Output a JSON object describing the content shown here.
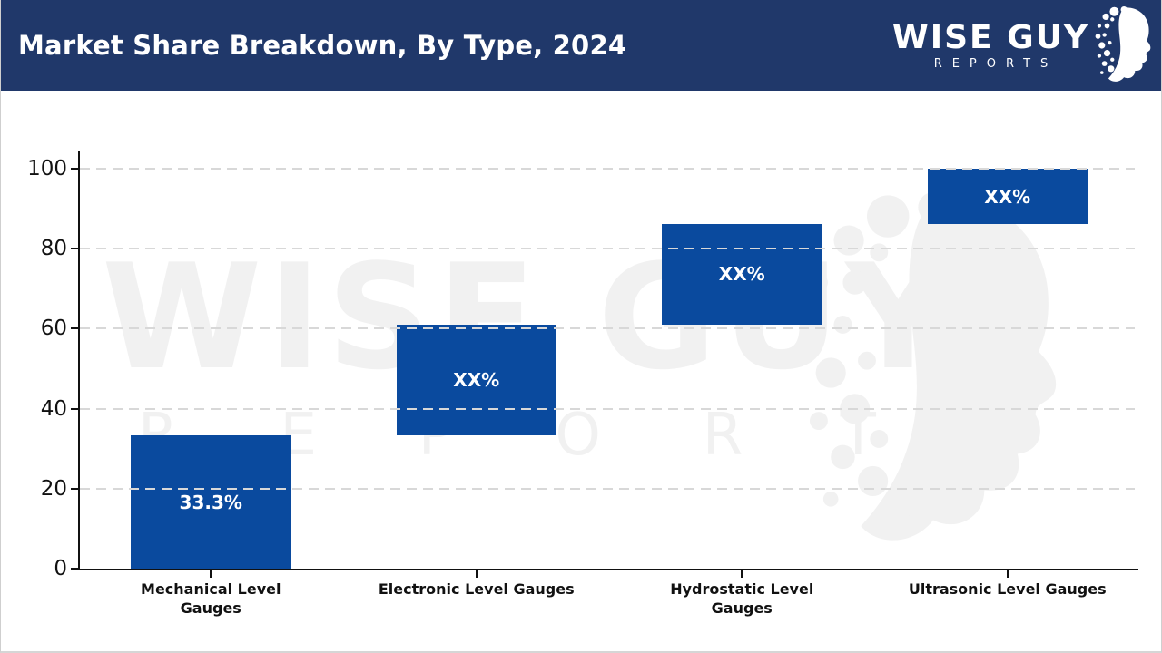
{
  "header": {
    "title": "Market Share Breakdown, By Type, 2024",
    "logo": {
      "primary": "WISE GUY",
      "secondary": "REPORTS"
    }
  },
  "watermark": {
    "primary": "WISE GUY",
    "secondary": "REPORTS"
  },
  "colors": {
    "header_bg": "#20386a",
    "bar": "#0a4a9e",
    "grid": "#d8d8d8",
    "axis": "#111111",
    "bar_label_text": "#ffffff",
    "title_text": "#ffffff",
    "watermark": "#f1f1f1",
    "frame_border": "#cfcfcf"
  },
  "chart_data": {
    "type": "bar",
    "subtype": "floating-segment (waterfall-style market share)",
    "title": "Market Share Breakdown, By Type, 2024",
    "categories": [
      "Mechanical Level Gauges",
      "Electronic Level Gauges",
      "Hydrostatic Level Gauges",
      "Ultrasonic Level Gauges"
    ],
    "bars": [
      {
        "category": "Mechanical Level Gauges",
        "from": 0,
        "to": 33.3,
        "label": "33.3%"
      },
      {
        "category": "Electronic Level Gauges",
        "from": 33.3,
        "to": 61.1,
        "label": "XX%"
      },
      {
        "category": "Hydrostatic Level Gauges",
        "from": 61.1,
        "to": 86.1,
        "label": "XX%"
      },
      {
        "category": "Ultrasonic Level Gauges",
        "from": 86.1,
        "to": 100,
        "label": "XX%"
      }
    ],
    "xlabel": "",
    "ylabel": "",
    "ylim": [
      0,
      100
    ],
    "yticks": [
      0,
      20,
      40,
      60,
      80,
      100
    ],
    "grid": "horizontal dashed, drawn over bars",
    "legend": "none",
    "bar_color": "#0a4a9e"
  }
}
